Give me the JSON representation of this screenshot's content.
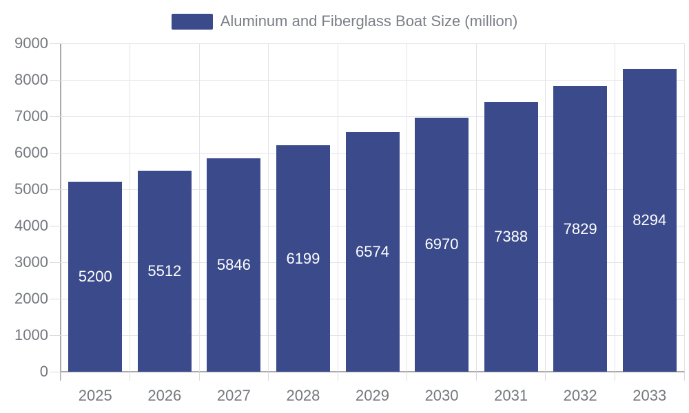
{
  "legend": {
    "label": "Aluminum and Fiberglass Boat Size (million)"
  },
  "colors": {
    "bar": "#3a4a8b",
    "bar_value_text": "#ffffff",
    "grid_line": "#e2e2e8",
    "axis_line": "#a8a8ad",
    "axis_text": "#75787e",
    "legend_text": "#7b7f86",
    "background": "#ffffff"
  },
  "chart_data": {
    "type": "bar",
    "title": "",
    "xlabel": "",
    "ylabel": "",
    "categories": [
      "2025",
      "2026",
      "2027",
      "2028",
      "2029",
      "2030",
      "2031",
      "2032",
      "2033"
    ],
    "series": [
      {
        "name": "Aluminum and Fiberglass Boat Size (million)",
        "values": [
          5200,
          5512,
          5846,
          6199,
          6574,
          6970,
          7388,
          7829,
          8294
        ],
        "color": "#3a4a8b",
        "value_labels": "inside-middle, white"
      }
    ],
    "ylim": [
      0,
      9000
    ],
    "yticks": [
      0,
      1000,
      2000,
      3000,
      4000,
      5000,
      6000,
      7000,
      8000,
      9000
    ],
    "grid": "horizontal and vertical light-gray gridlines",
    "legend_position": "top-center"
  }
}
